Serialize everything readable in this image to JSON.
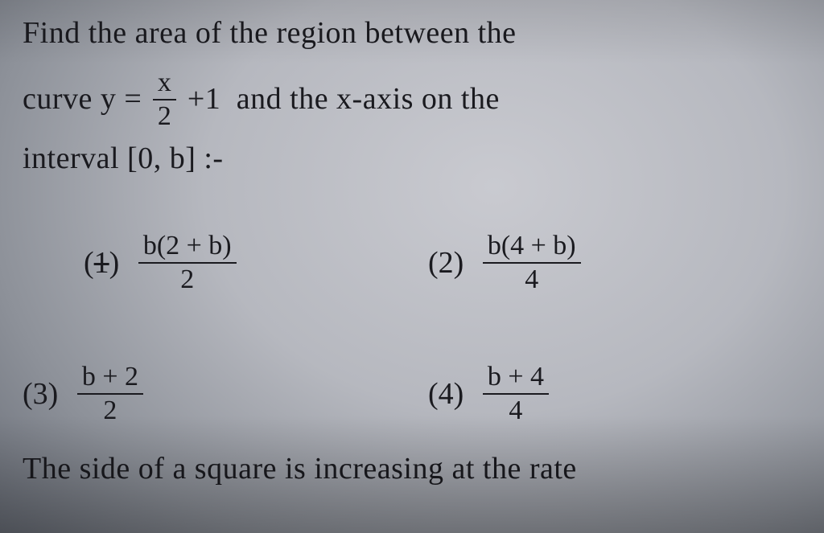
{
  "colors": {
    "text": "#1a1a1f",
    "bg_center": "#c9cad0",
    "bg_outer": "#5b606a"
  },
  "typography": {
    "body_fontsize_pt": 29,
    "frac_fontsize_pt": 26,
    "family": "Times New Roman"
  },
  "question": {
    "line1": "Find the area of the region between the",
    "line2_pre": "curve y =",
    "line2_frac": {
      "num": "x",
      "den": "2"
    },
    "line2_post_a": "+1",
    "line2_post_b": " and the x-axis on the",
    "line3": "interval [0, b] :-"
  },
  "options": [
    {
      "key": "1",
      "label_prefix": "(",
      "label_num": "1",
      "label_suffix": ") ",
      "struck": true,
      "frac": {
        "num": "b(2 + b)",
        "den": "2"
      }
    },
    {
      "key": "2",
      "label": "(2) ",
      "frac": {
        "num": "b(4 + b)",
        "den": "4"
      }
    },
    {
      "key": "3",
      "label": "(3) ",
      "frac": {
        "num": "b + 2",
        "den": "2"
      }
    },
    {
      "key": "4",
      "label": "(4) ",
      "frac": {
        "num": "b + 4",
        "den": "4"
      }
    }
  ],
  "next_question_fragment": "The side of a square is increasing at the rate"
}
